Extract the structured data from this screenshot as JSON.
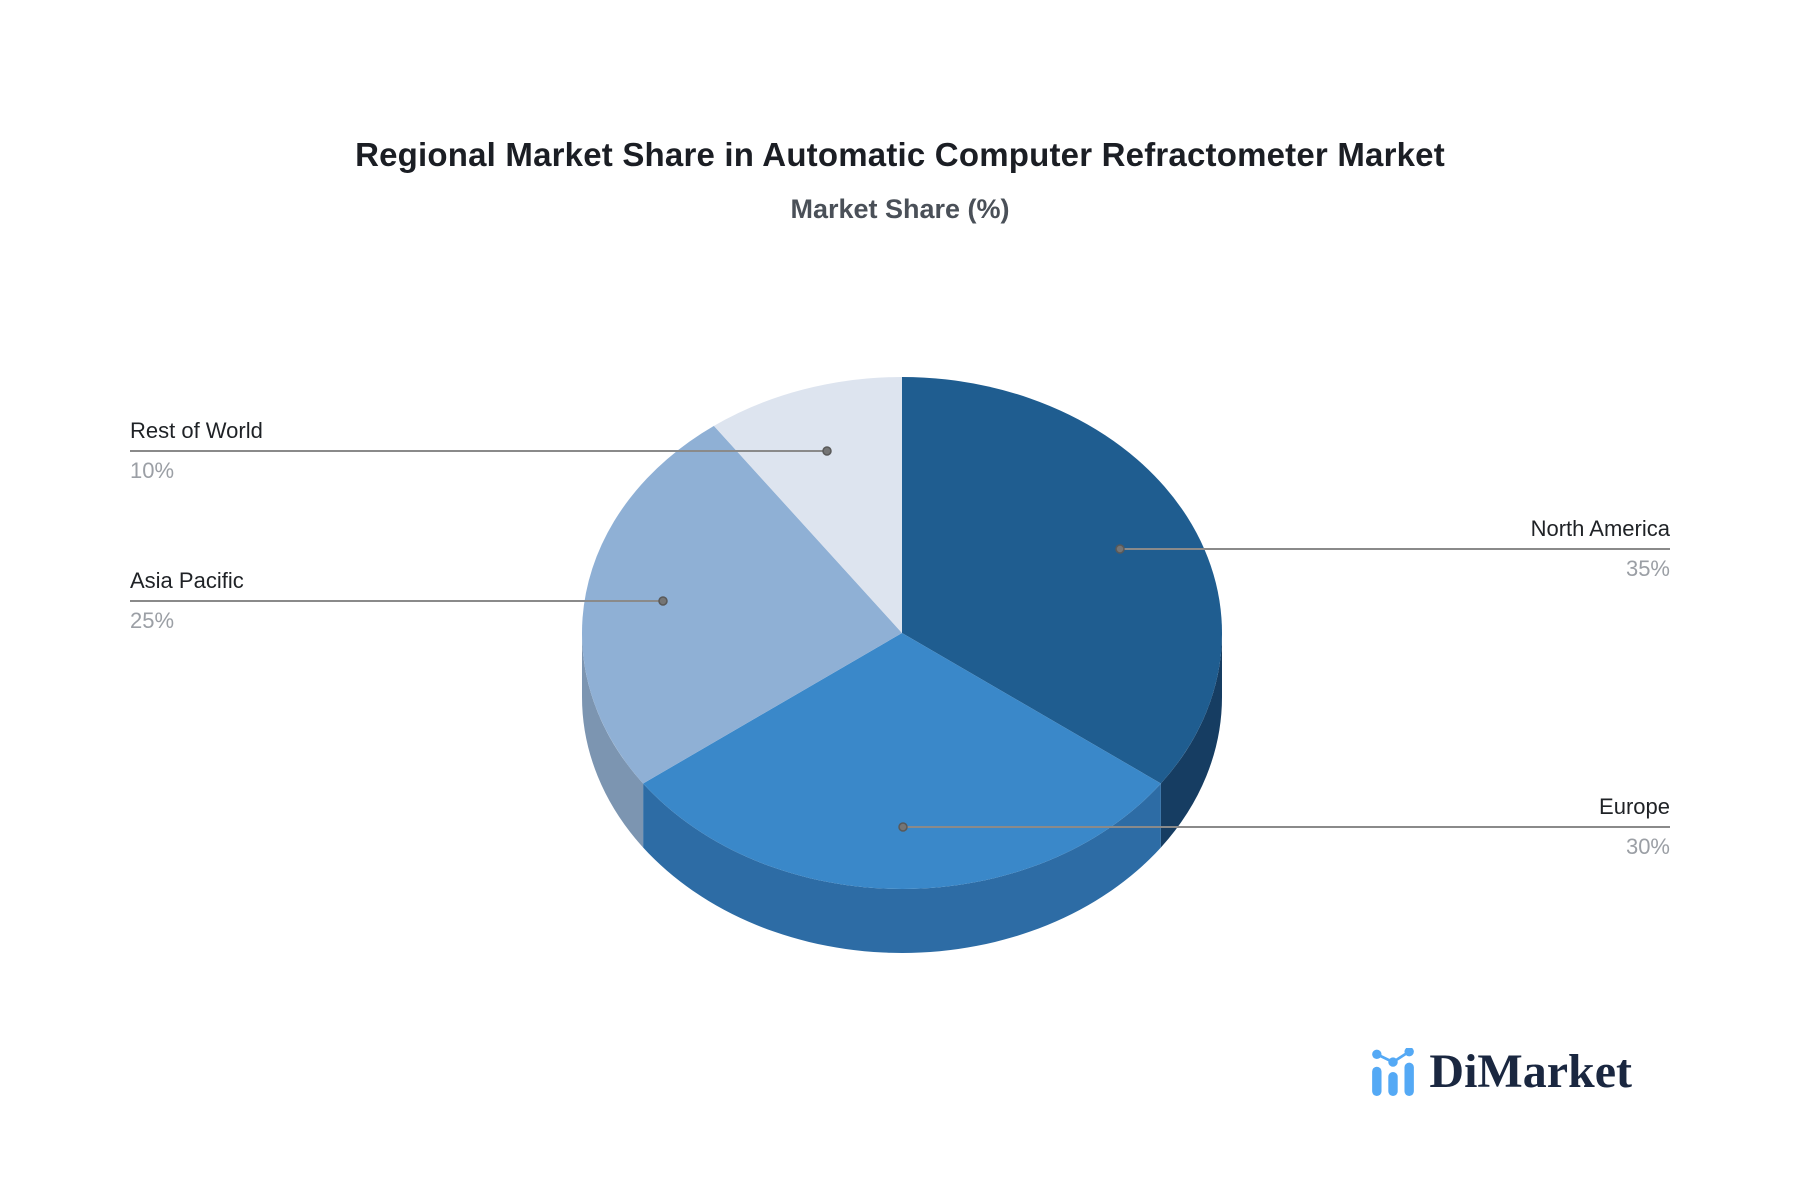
{
  "chart_data": {
    "type": "pie",
    "title": "Regional Market Share in Automatic Computer Refractometer Market",
    "subtitle": "Market Share (%)",
    "unit": "%",
    "style": "3d-pie",
    "legend_position": "callout-labels",
    "direction": "clockwise",
    "start_angle_deg": 0,
    "slices": [
      {
        "label": "North America",
        "value": 35,
        "value_label": "35%",
        "color": "#1F5D90",
        "side_color": "#163D62"
      },
      {
        "label": "Europe",
        "value": 30,
        "value_label": "30%",
        "color": "#3A88C9",
        "side_color": "#2D6CA5"
      },
      {
        "label": "Asia Pacific",
        "value": 25,
        "value_label": "25%",
        "color": "#8FB0D5",
        "side_color": "#7C95B1"
      },
      {
        "label": "Rest of World",
        "value": 10,
        "value_label": "10%",
        "color": "#DDE4EF",
        "side_color": "#B9C4D6"
      }
    ],
    "label_text_color": "#1f2226",
    "percent_text_color": "#9b9fa5",
    "callout_line_color": "#8a8a8a"
  },
  "branding": {
    "logo_text": "DiMarket",
    "logo_icon": "bar-line-chart-icon",
    "logo_icon_color": "#54a9f5",
    "logo_text_color": "#1a2740"
  }
}
